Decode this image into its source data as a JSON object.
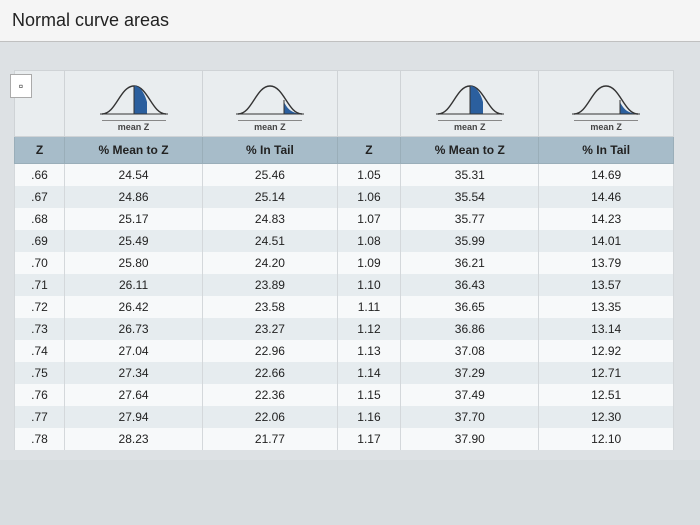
{
  "title": "Normal curve areas",
  "header": {
    "curve_caption": "mean Z",
    "z_left": "Z",
    "mean_to_z_left": "% Mean to Z",
    "in_tail_left": "% In Tail",
    "z_right": "Z",
    "mean_to_z_right": "% Mean to Z",
    "in_tail_right": "% In Tail"
  },
  "rows": [
    {
      "z1": ".66",
      "m1": "24.54",
      "t1": "25.46",
      "z2": "1.05",
      "m2": "35.31",
      "t2": "14.69"
    },
    {
      "z1": ".67",
      "m1": "24.86",
      "t1": "25.14",
      "z2": "1.06",
      "m2": "35.54",
      "t2": "14.46"
    },
    {
      "z1": ".68",
      "m1": "25.17",
      "t1": "24.83",
      "z2": "1.07",
      "m2": "35.77",
      "t2": "14.23"
    },
    {
      "z1": ".69",
      "m1": "25.49",
      "t1": "24.51",
      "z2": "1.08",
      "m2": "35.99",
      "t2": "14.01"
    },
    {
      "z1": ".70",
      "m1": "25.80",
      "t1": "24.20",
      "z2": "1.09",
      "m2": "36.21",
      "t2": "13.79"
    },
    {
      "z1": ".71",
      "m1": "26.11",
      "t1": "23.89",
      "z2": "1.10",
      "m2": "36.43",
      "t2": "13.57"
    },
    {
      "z1": ".72",
      "m1": "26.42",
      "t1": "23.58",
      "z2": "1.11",
      "m2": "36.65",
      "t2": "13.35"
    },
    {
      "z1": ".73",
      "m1": "26.73",
      "t1": "23.27",
      "z2": "1.12",
      "m2": "36.86",
      "t2": "13.14"
    },
    {
      "z1": ".74",
      "m1": "27.04",
      "t1": "22.96",
      "z2": "1.13",
      "m2": "37.08",
      "t2": "12.92"
    },
    {
      "z1": ".75",
      "m1": "27.34",
      "t1": "22.66",
      "z2": "1.14",
      "m2": "37.29",
      "t2": "12.71"
    },
    {
      "z1": ".76",
      "m1": "27.64",
      "t1": "22.36",
      "z2": "1.15",
      "m2": "37.49",
      "t2": "12.51"
    },
    {
      "z1": ".77",
      "m1": "27.94",
      "t1": "22.06",
      "z2": "1.16",
      "m2": "37.70",
      "t2": "12.30"
    },
    {
      "z1": ".78",
      "m1": "28.23",
      "t1": "21.77",
      "z2": "1.17",
      "m2": "37.90",
      "t2": "12.10"
    }
  ],
  "styles": {
    "header_bg": "#a7bcc9",
    "row_even_bg": "#e6ecef",
    "row_odd_bg": "#f7f9fa",
    "curve_fill": "#2b5f9e",
    "curve_stroke": "#333333",
    "page_bg": "#d8dde0",
    "title_font_size": 18,
    "cell_font_size": 12
  }
}
